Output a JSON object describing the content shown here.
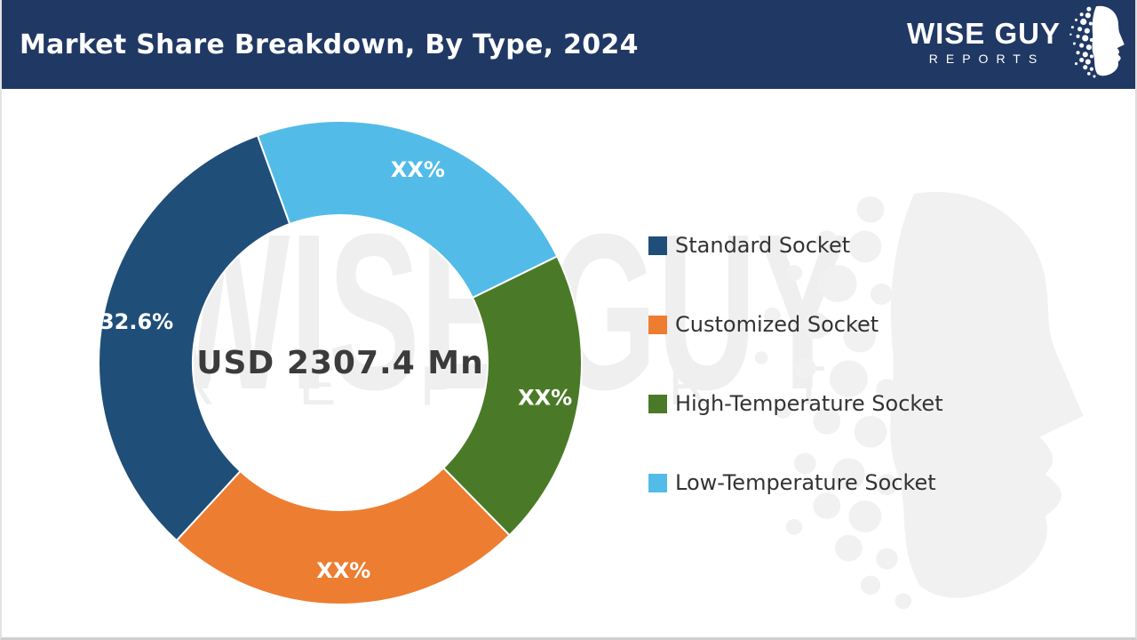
{
  "header": {
    "title": "Market Share Breakdown, By Type, 2024",
    "logo": {
      "line1": "WISE GUY",
      "line2": "REPORTS"
    }
  },
  "watermark": {
    "line1": "WISE GUY",
    "line2": "REPORTS"
  },
  "chart_data": {
    "type": "pie",
    "subtype": "donut",
    "title": "Market Share Breakdown, By Type, 2024",
    "center_label": "USD 2307.4 Mn",
    "start_angle_deg": -20,
    "direction": "counterclockwise",
    "inner_radius_ratio": 0.61,
    "legend_position": "right",
    "segments": [
      {
        "name": "Standard Socket",
        "value_pct": 32.6,
        "label": "32.6%",
        "color": "#1F4E79"
      },
      {
        "name": "Customized Socket",
        "value_pct": 24.2,
        "label": "XX%",
        "color": "#ED7D31"
      },
      {
        "name": "High-Temperature Socket",
        "value_pct": 19.9,
        "label": "XX%",
        "color": "#4A7A27"
      },
      {
        "name": "Low-Temperature Socket",
        "value_pct": 23.3,
        "label": "XX%",
        "color": "#53BBE8"
      }
    ],
    "colors": {
      "header_background": "#203864",
      "label_text": "#ffffff",
      "center_text": "#3b3b3b",
      "legend_text": "#333333"
    }
  }
}
